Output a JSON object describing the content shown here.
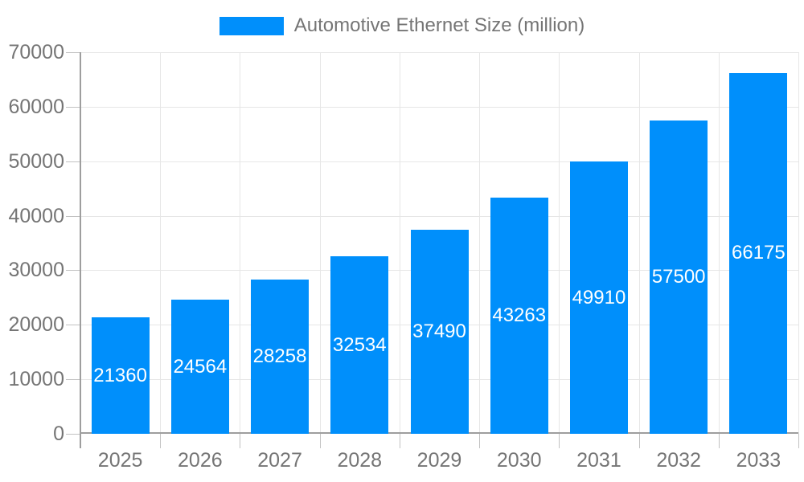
{
  "chart_data": {
    "type": "bar",
    "title": "Automotive Ethernet Size (million)",
    "legend": {
      "label": "Automotive Ethernet Size (million)",
      "position": "top"
    },
    "categories": [
      "2025",
      "2026",
      "2027",
      "2028",
      "2029",
      "2030",
      "2031",
      "2032",
      "2033"
    ],
    "series": [
      {
        "name": "Automotive Ethernet Size (million)",
        "values": [
          21360,
          24564,
          28258,
          32534,
          37490,
          43263,
          49910,
          57500,
          66175
        ]
      }
    ],
    "value_labels": [
      "21360",
      "24564",
      "28258",
      "32534",
      "37490",
      "43263",
      "49910",
      "57500",
      "66175"
    ],
    "xlabel": "",
    "ylabel": "",
    "ylim": [
      0,
      70000
    ],
    "yticks": [
      0,
      10000,
      20000,
      30000,
      40000,
      50000,
      60000,
      70000
    ],
    "grid": true,
    "legend_position": "top",
    "colors": {
      "bar": "#008FFB",
      "value_label": "#ffffff",
      "axis_text": "#757575",
      "legend_text": "#757575",
      "gridline": "#e6e6e6",
      "tick": "#c2c2c2",
      "axis_line": "#9e9e9e",
      "background": "#ffffff"
    }
  }
}
